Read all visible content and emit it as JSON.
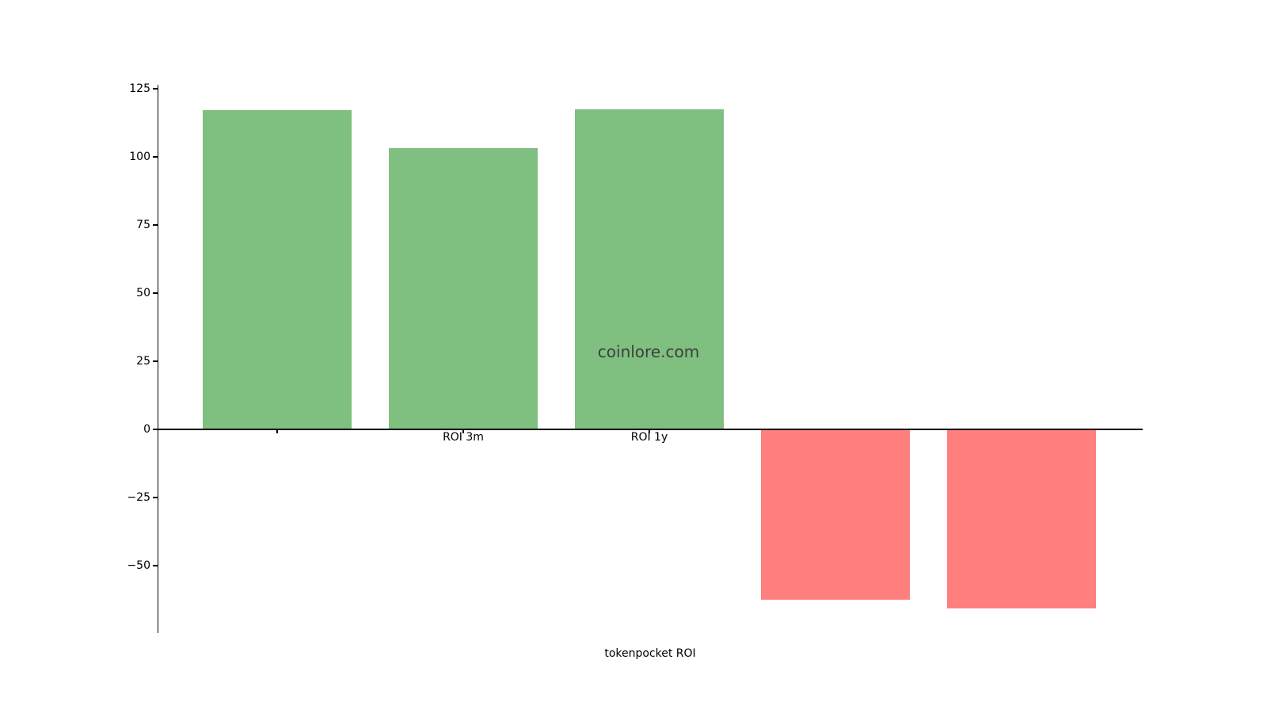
{
  "watermark": "coinlore.com",
  "chart_data": {
    "type": "bar",
    "title": "",
    "xlabel": "tokenpocket ROI",
    "ylabel": "",
    "categories": [
      "",
      "ROI 3m",
      "ROI 1y",
      "",
      ""
    ],
    "values": [
      117.2,
      103.2,
      117.4,
      -62.5,
      -65.7
    ],
    "series": [
      {
        "name": "tokenpocket ROI",
        "values": [
          117.2,
          103.2,
          117.4,
          -62.5,
          -65.7
        ]
      }
    ],
    "positive_color": "#7fbf7f",
    "negative_color": "#ff7f7f",
    "axis_color": "#000000",
    "background_color": "#ffffff",
    "yticks": [
      125,
      100,
      75,
      50,
      25,
      0,
      -25,
      -50
    ],
    "ylim": [
      -74.7,
      126.45
    ],
    "xticks_visible_indices": [
      0,
      1,
      2
    ],
    "grid": false,
    "legend": null
  }
}
